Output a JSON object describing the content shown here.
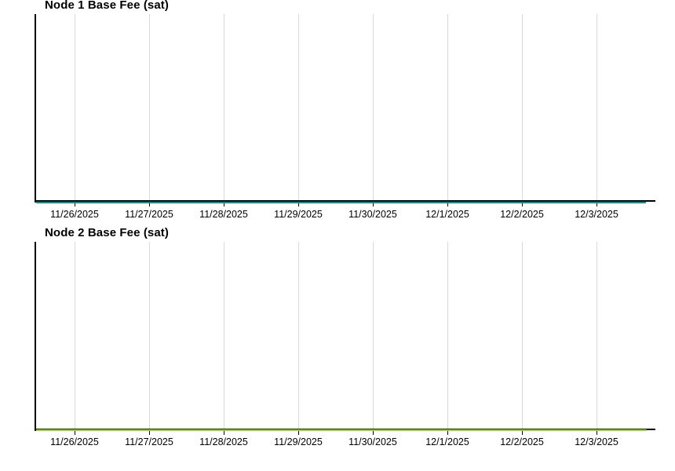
{
  "page": {
    "background": "#ffffff"
  },
  "chart_data": [
    {
      "type": "line",
      "title": "Node 1 Base Fee (sat)",
      "x": [
        "11/26/2025",
        "11/27/2025",
        "11/28/2025",
        "11/29/2025",
        "11/30/2025",
        "12/1/2025",
        "12/2/2025",
        "12/3/2025"
      ],
      "series": [
        {
          "name": "Node 1 Base Fee",
          "values": [
            0,
            0,
            0,
            0,
            0,
            0,
            0,
            0
          ],
          "color": "#178a8a"
        }
      ],
      "xlabel": "",
      "ylabel": "",
      "y_tick_labels": [],
      "grid": "vertical",
      "legend": "none",
      "gridline_color": "#d9d9d9",
      "axis_color": "#000000"
    },
    {
      "type": "line",
      "title": "Node 2 Base Fee (sat)",
      "x": [
        "11/26/2025",
        "11/27/2025",
        "11/28/2025",
        "11/29/2025",
        "11/30/2025",
        "12/1/2025",
        "12/2/2025",
        "12/3/2025"
      ],
      "series": [
        {
          "name": "Node 2 Base Fee",
          "values": [
            0,
            0,
            0,
            0,
            0,
            0,
            0,
            0
          ],
          "color": "#9fc93d"
        }
      ],
      "xlabel": "",
      "ylabel": "",
      "y_tick_labels": [],
      "grid": "vertical",
      "legend": "none",
      "gridline_color": "#d9d9d9",
      "axis_color": "#000000"
    }
  ]
}
